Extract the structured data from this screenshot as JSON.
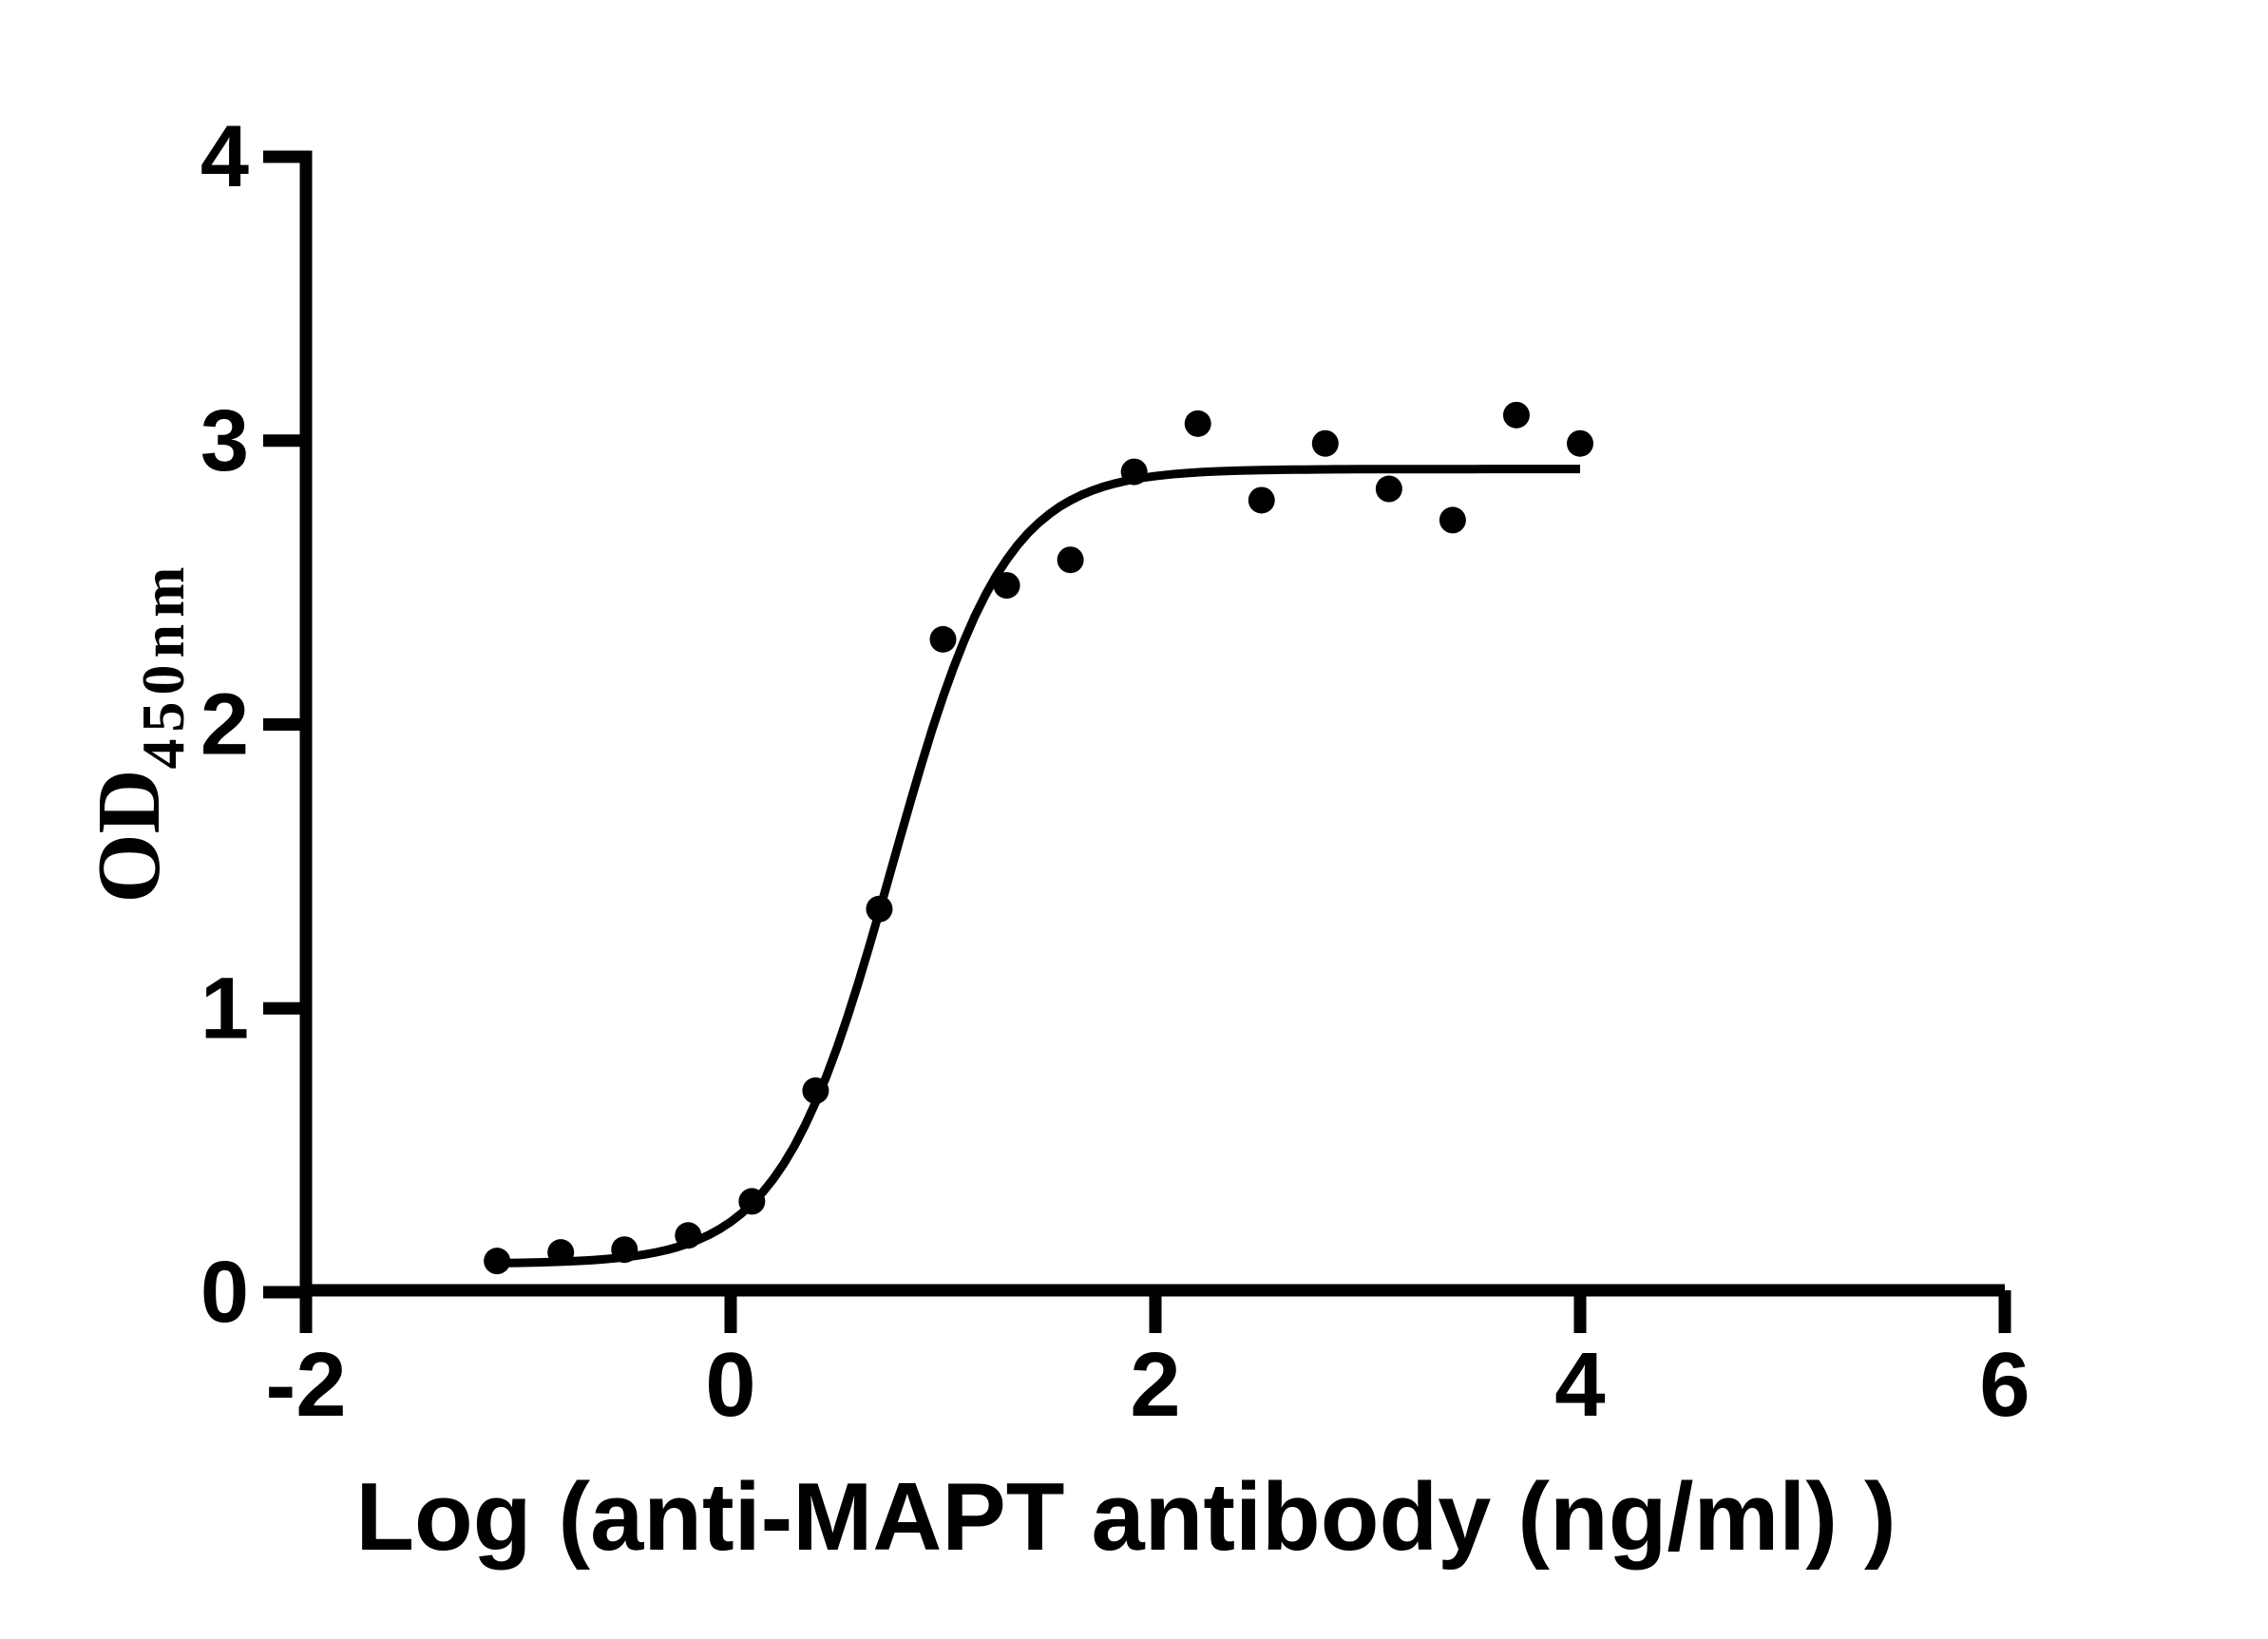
{
  "chart_data": {
    "type": "scatter",
    "title": "",
    "xlabel": "Log (anti-MAPT antibody (ng/ml) )",
    "ylabel": {
      "main": "OD",
      "sub": "450nm"
    },
    "xlim": [
      -2,
      6
    ],
    "ylim": [
      0,
      4
    ],
    "x_ticks": [
      -2,
      0,
      2,
      4,
      6
    ],
    "x_tick_labels": [
      "-2",
      "0",
      "2",
      "4",
      "6"
    ],
    "y_ticks": [
      0,
      1,
      2,
      3,
      4
    ],
    "y_tick_labels": [
      "0",
      "1",
      "2",
      "3",
      "4"
    ],
    "grid": false,
    "legend": "none",
    "marker_color": "#000000",
    "curve_color": "#000000",
    "axis_color": "#000000",
    "background_color": "#ffffff",
    "points": [
      {
        "x": -1.1,
        "y": 0.11
      },
      {
        "x": -0.8,
        "y": 0.14
      },
      {
        "x": -0.5,
        "y": 0.15
      },
      {
        "x": -0.2,
        "y": 0.2
      },
      {
        "x": 0.1,
        "y": 0.32
      },
      {
        "x": 0.4,
        "y": 0.71
      },
      {
        "x": 0.7,
        "y": 1.35
      },
      {
        "x": 1.0,
        "y": 2.3
      },
      {
        "x": 1.3,
        "y": 2.49
      },
      {
        "x": 1.6,
        "y": 2.58
      },
      {
        "x": 1.9,
        "y": 2.89
      },
      {
        "x": 2.2,
        "y": 3.06
      },
      {
        "x": 2.5,
        "y": 2.79
      },
      {
        "x": 2.8,
        "y": 2.99
      },
      {
        "x": 3.1,
        "y": 2.83
      },
      {
        "x": 3.4,
        "y": 2.72
      },
      {
        "x": 3.7,
        "y": 3.09
      },
      {
        "x": 4.0,
        "y": 2.99
      }
    ],
    "fit_curve": {
      "model": "4PL-sigmoid",
      "bottom": 0.1,
      "top": 2.9,
      "logEC50": 0.76,
      "hill": 1.65,
      "x_start": -1.1,
      "x_end": 4.0
    }
  }
}
